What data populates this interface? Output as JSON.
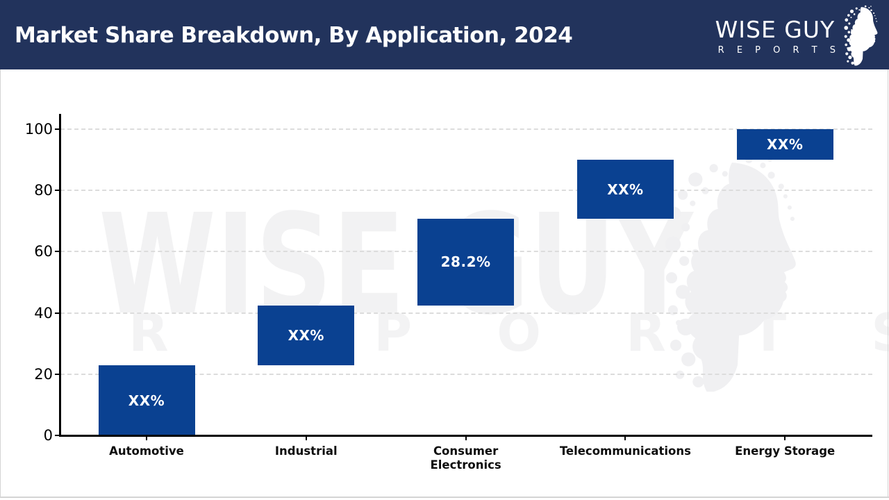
{
  "header": {
    "title": "Market Share Breakdown, By Application, 2024",
    "bg_color": "#22335c"
  },
  "logo": {
    "name_line": "WISE GUY",
    "reports_line": "R E P O R T S",
    "head_icon": "dotted-face-profile"
  },
  "watermark": {
    "name_line": "WISE GUY",
    "reports_line": "R E P O R T S",
    "head_icon": "dotted-face-profile"
  },
  "colors": {
    "header_bg": "#22335c",
    "bar_blue": "#0a4191",
    "grid_gray": "#dcdcdc",
    "axis_black": "#000000",
    "bar_label_white": "#ffffff",
    "watermark_gray": "#f2f2f3"
  },
  "chart_data": {
    "type": "bar",
    "subtype": "waterfall",
    "title": "Market Share Breakdown, By Application, 2024",
    "xlabel": "",
    "ylabel": "",
    "ylim": [
      0,
      105
    ],
    "yticks": [
      0,
      20,
      40,
      60,
      80,
      100
    ],
    "grid": "horizontal-dashed",
    "legend": "none",
    "categories": [
      "Automotive",
      "Industrial",
      "Consumer Electronics",
      "Telecommunications",
      "Energy Storage"
    ],
    "category_label_lines": [
      [
        "Automotive"
      ],
      [
        "Industrial"
      ],
      [
        "Consumer",
        "Electronics"
      ],
      [
        "Telecommunications"
      ],
      [
        "Energy Storage"
      ]
    ],
    "segments": [
      {
        "category": "Automotive",
        "start": 0,
        "end": 22.8,
        "label": "XX%"
      },
      {
        "category": "Industrial",
        "start": 22.8,
        "end": 42.5,
        "label": "XX%"
      },
      {
        "category": "Consumer Electronics",
        "start": 42.5,
        "end": 70.7,
        "label": "28.2%"
      },
      {
        "category": "Telecommunications",
        "start": 70.7,
        "end": 90,
        "label": "XX%"
      },
      {
        "category": "Energy Storage",
        "start": 90,
        "end": 100,
        "label": "XX%"
      }
    ]
  }
}
